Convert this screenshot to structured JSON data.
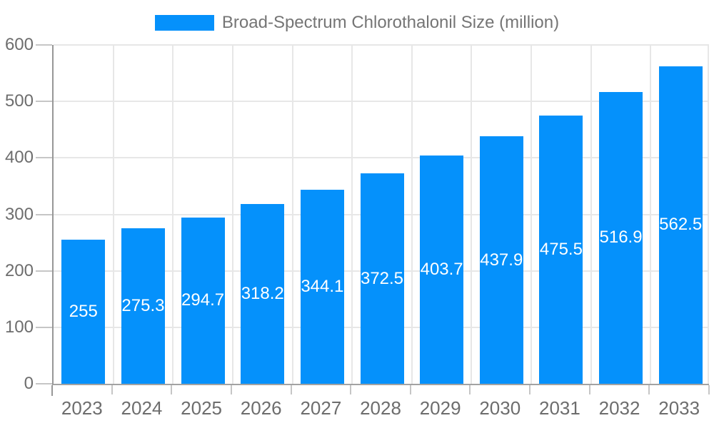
{
  "legend": {
    "label": "Broad-Spectrum Chlorothalonil Size (million)"
  },
  "chart_data": {
    "type": "bar",
    "title": "Broad-Spectrum Chlorothalonil Size (million)",
    "categories": [
      "2023",
      "2024",
      "2025",
      "2026",
      "2027",
      "2028",
      "2029",
      "2030",
      "2031",
      "2032",
      "2033"
    ],
    "values": [
      255,
      275.3,
      294.7,
      318.2,
      344.1,
      372.5,
      403.7,
      437.9,
      475.5,
      516.9,
      562.5
    ],
    "value_labels": [
      "255",
      "275.3",
      "294.7",
      "318.2",
      "344.1",
      "372.5",
      "403.7",
      "437.9",
      "475.5",
      "516.9",
      "562.5"
    ],
    "xlabel": "",
    "ylabel": "",
    "ylim": [
      0,
      600
    ],
    "y_ticks": [
      0,
      100,
      200,
      300,
      400,
      500,
      600
    ],
    "grid": true,
    "legend_position": "top",
    "data_labels": "inside-center"
  },
  "colors": {
    "bar": "#0591fb",
    "data_label": "#ffffff",
    "axis_text": "#6d6d6d",
    "legend_text": "#757575",
    "gridline": "#e7e7e7",
    "tick": "#c6c6c6",
    "axis_line": "#979797"
  }
}
